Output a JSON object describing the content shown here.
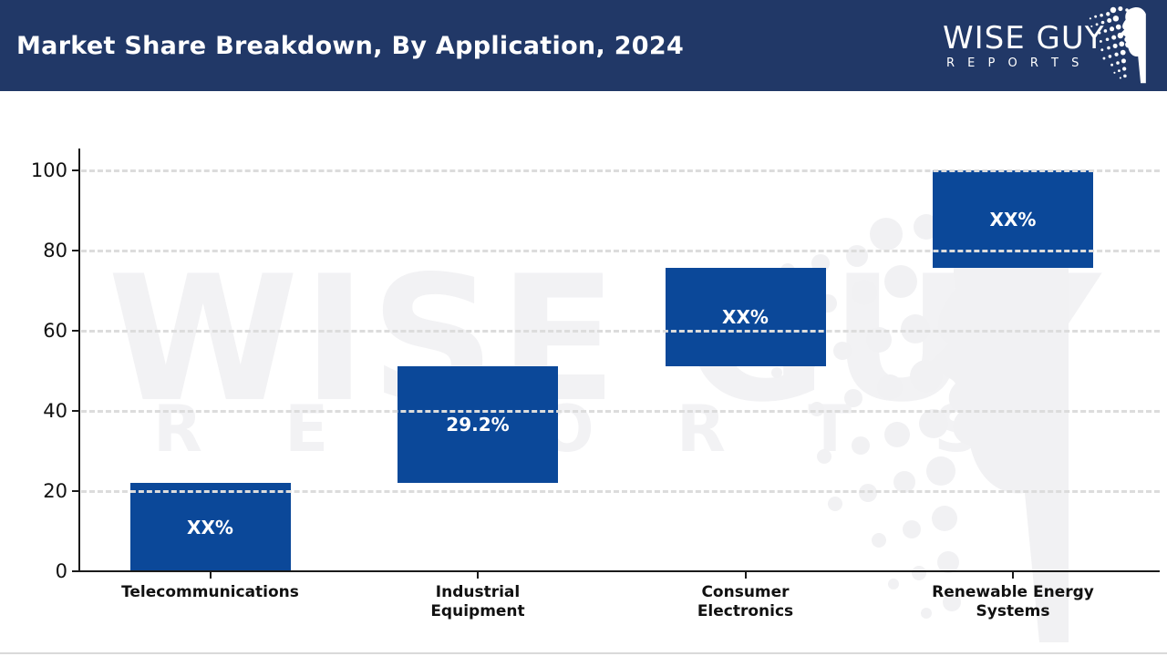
{
  "header": {
    "title": "Market Share Breakdown, By Application, 2024",
    "logo": {
      "line1": "WISE GUY",
      "line2": "R E P O R T S"
    }
  },
  "watermark": {
    "line1": "WISE GUY",
    "line2": "R E P O R T S"
  },
  "colors": {
    "header_bg": "#213867",
    "bar": "#0b4899",
    "grid": "#dcdcdc",
    "axis": "#1a1a1a",
    "watermark": "#f2f2f4",
    "title_text": "#ffffff",
    "bar_label_text": "#ffffff"
  },
  "chart_data": {
    "type": "bar",
    "subtype": "floating-waterfall",
    "title": "Market Share Breakdown, By Application, 2024",
    "categories": [
      "Telecommunications",
      "Industrial Equipment",
      "Consumer Electronics",
      "Renewable Energy Systems"
    ],
    "category_lines": [
      [
        "Telecommunications"
      ],
      [
        "Industrial",
        "Equipment"
      ],
      [
        "Consumer",
        "Electronics"
      ],
      [
        "Renewable Energy",
        "Systems"
      ]
    ],
    "series": [
      {
        "name": "Market share (%)",
        "segments": [
          {
            "from": 0,
            "to": 22
          },
          {
            "from": 22,
            "to": 51.2
          },
          {
            "from": 51.2,
            "to": 75.6
          },
          {
            "from": 75.6,
            "to": 100
          }
        ]
      }
    ],
    "bar_labels": [
      "XX%",
      "29.2%",
      "XX%",
      "XX%"
    ],
    "ylim": [
      0,
      100
    ],
    "yticks": [
      0,
      20,
      40,
      60,
      80,
      100
    ],
    "xlabel": "",
    "ylabel": "",
    "grid": "horizontal-dashed",
    "legend": "none"
  }
}
